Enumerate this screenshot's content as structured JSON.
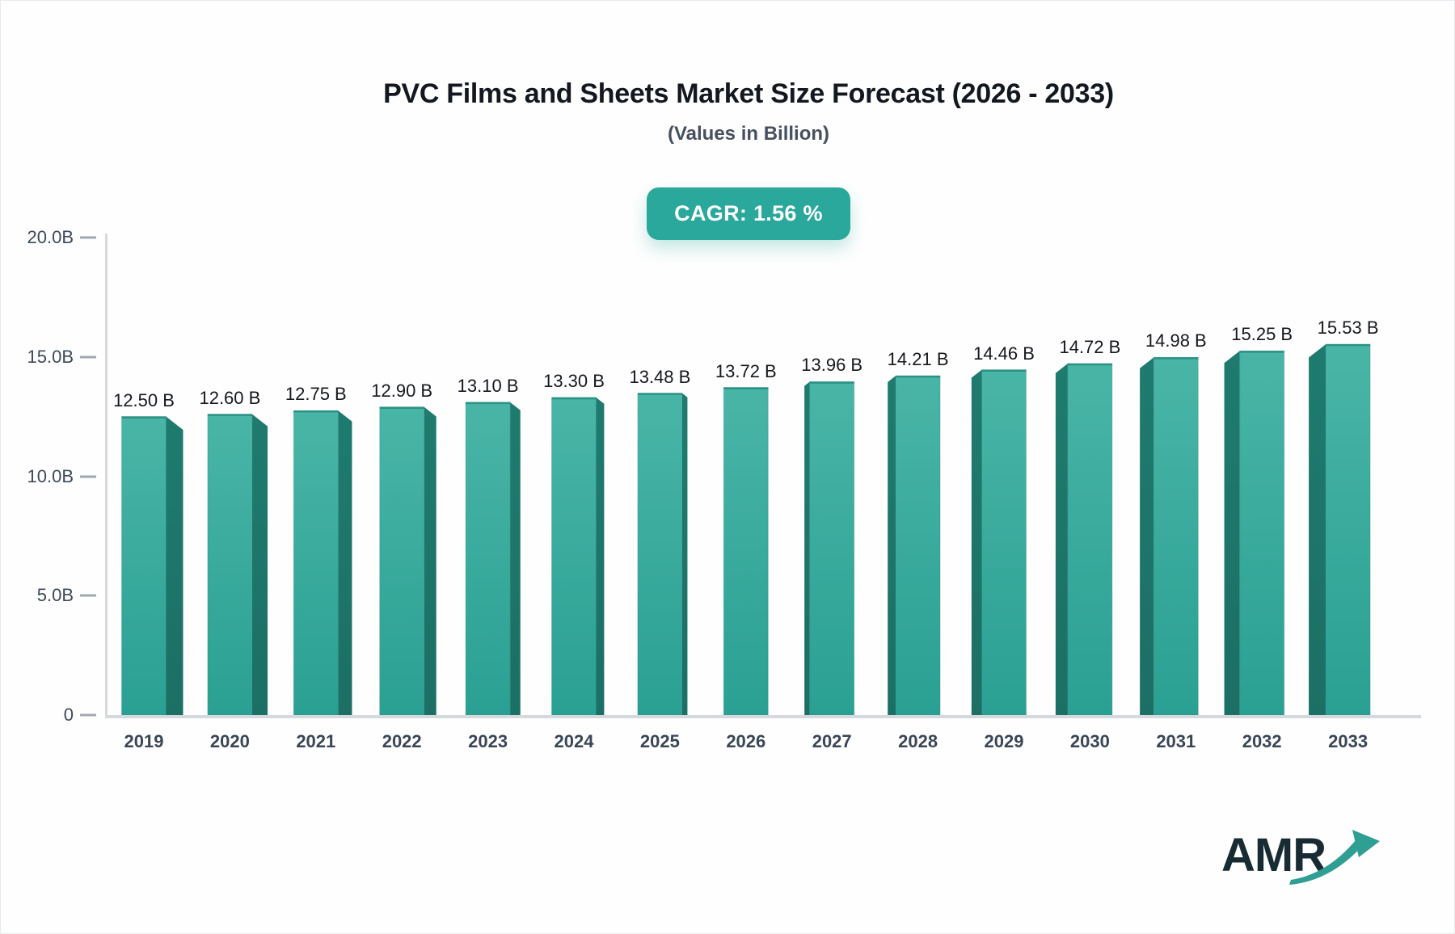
{
  "header": {
    "title": "PVC Films and Sheets Market Size Forecast (2026 - 2033)",
    "subtitle": "(Values in Billion)",
    "cagr_badge": "CAGR: 1.56 %"
  },
  "chart_data": {
    "type": "bar",
    "title": "PVC Films and Sheets Market Size Forecast (2026 - 2033)",
    "subtitle": "(Values in Billion)",
    "cagr_percent": 1.56,
    "unit": "Billion",
    "categories": [
      "2019",
      "2020",
      "2021",
      "2022",
      "2023",
      "2024",
      "2025",
      "2026",
      "2027",
      "2028",
      "2029",
      "2030",
      "2031",
      "2032",
      "2033"
    ],
    "values": [
      12.5,
      12.6,
      12.75,
      12.9,
      13.1,
      13.3,
      13.48,
      13.72,
      13.96,
      14.21,
      14.46,
      14.72,
      14.98,
      15.25,
      15.53
    ],
    "value_labels": [
      "12.50 B",
      "12.60 B",
      "12.75 B",
      "12.90 B",
      "13.10 B",
      "13.30 B",
      "13.48 B",
      "13.72 B",
      "13.96 B",
      "14.21 B",
      "14.46 B",
      "14.72 B",
      "14.98 B",
      "15.25 B",
      "15.53 B"
    ],
    "xlabel": "",
    "ylabel": "",
    "ylim": [
      0,
      20
    ],
    "yticks": [
      {
        "value": 0,
        "label": "0"
      },
      {
        "value": 5,
        "label": "5.0B"
      },
      {
        "value": 10,
        "label": "10.0B"
      },
      {
        "value": 15,
        "label": "15.0B"
      },
      {
        "value": 20,
        "label": "20.0B"
      }
    ],
    "grid": false,
    "legend": false,
    "bar_style": "3d-perspective",
    "colors": {
      "bar_face_top": "#49b5a7",
      "bar_face_bottom": "#2aa093",
      "bar_side": "#1f7b6f",
      "bar_side_dark": "#1c6f64",
      "bar_top_edge": "#2a9184",
      "axis_line": "#d5d8dd",
      "tick_dash": "#a0a8b1",
      "tick_label": "#3e4a59",
      "category_label": "#3a4657",
      "value_label": "#15181d",
      "badge_bg": "#2aa89b",
      "badge_text": "#ffffff"
    }
  },
  "logo": {
    "text": "AMR",
    "text_color": "#182b33",
    "arrow_color": "#2f9e93",
    "arrow_icon": "trend-up-arrow"
  }
}
